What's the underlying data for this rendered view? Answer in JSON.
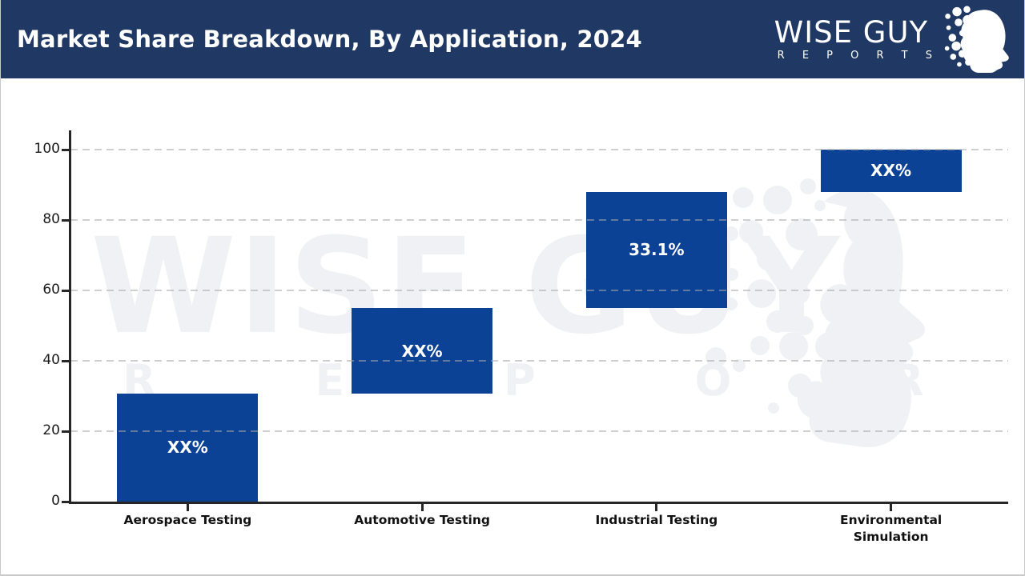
{
  "header": {
    "title": "Market Share Breakdown, By Application, 2024",
    "brand_line1": "WISE GUY",
    "brand_line2": "R E P O R T S"
  },
  "watermark": {
    "line1": "WISE GUY",
    "line2": "R E P O R T S"
  },
  "colors": {
    "header_bg": "#1f3864",
    "bar_blue": "#0b4295",
    "axis": "#262626",
    "watermark_gray": "#f0f1f4"
  },
  "chart_data": {
    "type": "bar",
    "subtype": "floating-waterfall",
    "title": "Market Share Breakdown, By Application, 2024",
    "categories": [
      "Aerospace Testing",
      "Automotive Testing",
      "Industrial Testing",
      "Environmental Simulation"
    ],
    "xtick_labels": [
      "Aerospace Testing",
      "Automotive Testing",
      "Industrial Testing",
      "Environmental\nSimulation"
    ],
    "segments": [
      {
        "category": "Aerospace Testing",
        "start": 0,
        "end": 30.7,
        "label": "XX%"
      },
      {
        "category": "Automotive Testing",
        "start": 30.7,
        "end": 55.0,
        "label": "XX%"
      },
      {
        "category": "Industrial Testing",
        "start": 55.0,
        "end": 88.1,
        "label": "33.1%"
      },
      {
        "category": "Environmental Simulation",
        "start": 88.1,
        "end": 100.0,
        "label": "XX%"
      }
    ],
    "ylabel": "",
    "xlabel": "",
    "ylim": [
      0,
      105.5
    ],
    "yticks": [
      0,
      20,
      40,
      60,
      80,
      100
    ],
    "grid": "dashed-horizontal-over-bars",
    "legend": "none",
    "bar_color": "#0b4295",
    "bar_label_color": "#ffffff"
  }
}
